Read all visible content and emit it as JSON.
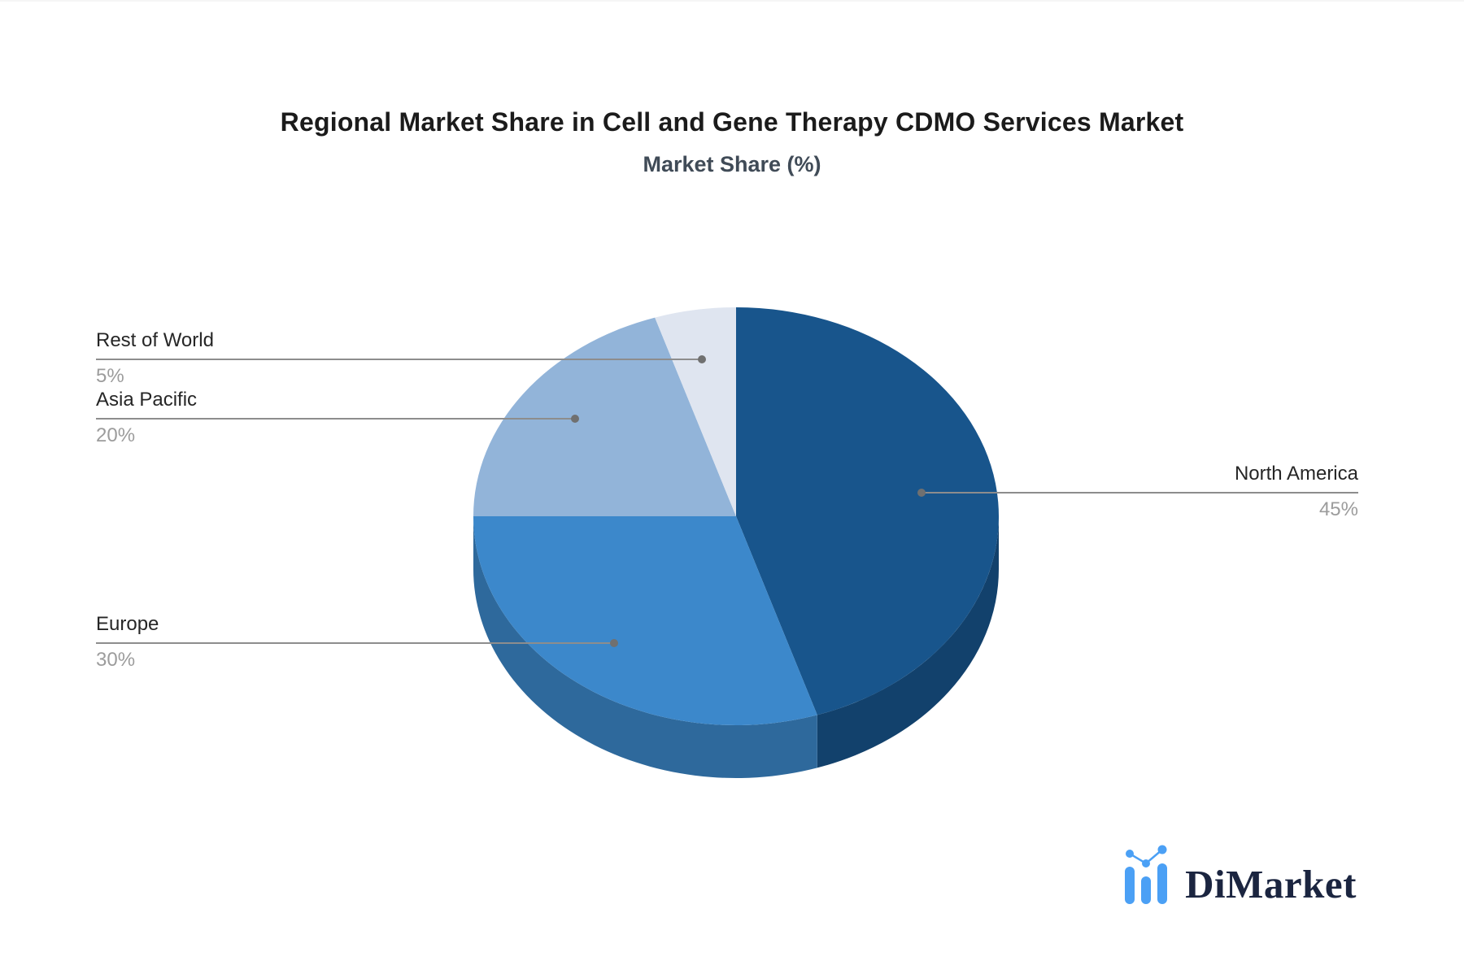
{
  "header": {
    "title": "Regional Market Share in Cell and Gene Therapy CDMO Services Market",
    "subtitle": "Market Share (%)"
  },
  "chart_data": {
    "type": "pie",
    "title": "Regional Market Share in Cell and Gene Therapy CDMO Services Market",
    "subtitle": "Market Share (%)",
    "unit": "%",
    "direction": "clockwise",
    "start_angle_deg": 0,
    "effect_3d": true,
    "legend_position": "callout-labels",
    "slices": [
      {
        "label": "North America",
        "value": 45,
        "color": "#18558C"
      },
      {
        "label": "Europe",
        "value": 30,
        "color": "#3C88CB"
      },
      {
        "label": "Asia Pacific",
        "value": 20,
        "color": "#92B4D9"
      },
      {
        "label": "Rest of World",
        "value": 5,
        "color": "#DFE5F0"
      }
    ]
  },
  "callouts": [
    {
      "label": "North America",
      "value_label": "45%"
    },
    {
      "label": "Europe",
      "value_label": "30%"
    },
    {
      "label": "Asia Pacific",
      "value_label": "20%"
    },
    {
      "label": "Rest of World",
      "value_label": "5%"
    }
  ],
  "branding": {
    "logo_text": "DiMarket",
    "logo_icon": "bar-chart-logo-icon"
  },
  "colors": {
    "title_text": "#1B1B1B",
    "subtitle_text": "#404B57",
    "label_text": "#262626",
    "percent_text": "#9C9C9C",
    "leader_line": "#8D8D8D",
    "leader_dot": "#707070",
    "logo_text": "#1B2540",
    "logo_accent": "#4BA0F5"
  }
}
